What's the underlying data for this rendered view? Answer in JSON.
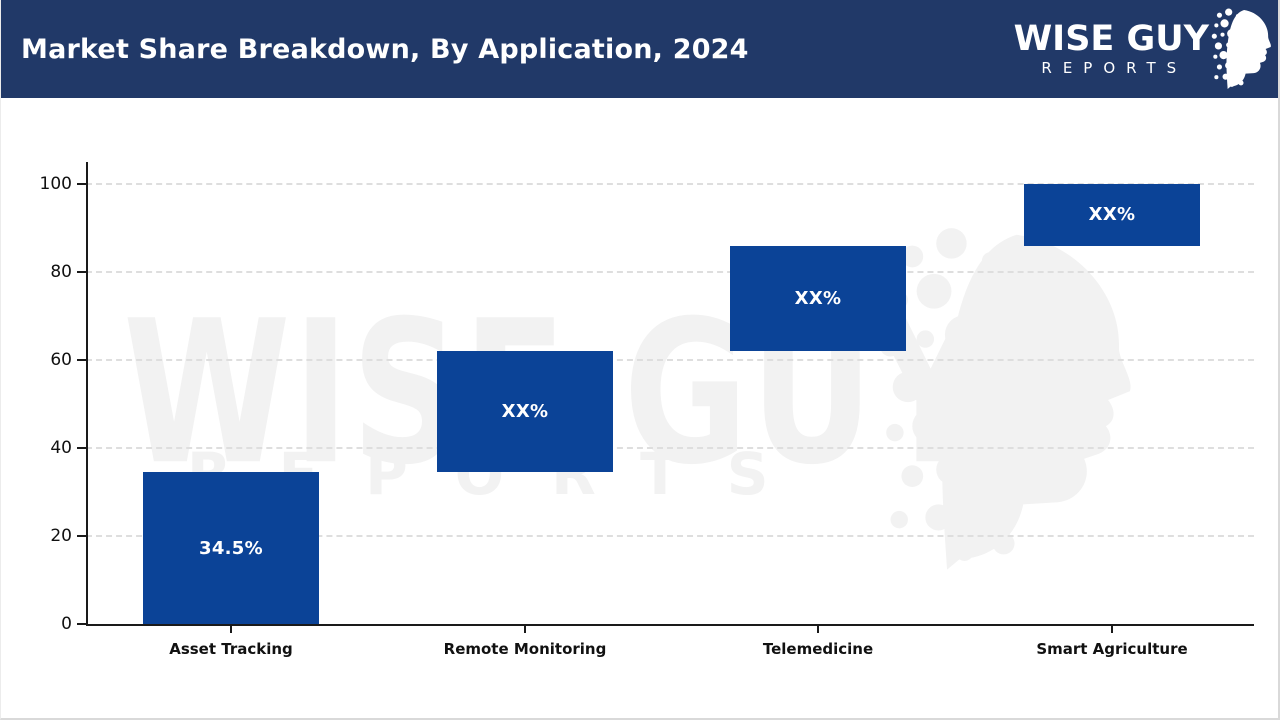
{
  "header": {
    "title": "Market Share Breakdown, By Application, 2024",
    "bg_color": "#213968",
    "logo": {
      "line1": "WISE GUY",
      "line2": "REPORTS"
    }
  },
  "watermark": {
    "line1": "WISE GUY",
    "line2": "REPORTS"
  },
  "chart_data": {
    "type": "bar",
    "subtype": "waterfall",
    "title": "Market Share Breakdown, By Application, 2024",
    "categories": [
      "Asset Tracking",
      "Remote Monitoring",
      "Telemedicine",
      "Smart Agriculture"
    ],
    "segments": [
      {
        "category": "Asset Tracking",
        "start": 0,
        "end": 34.5,
        "label": "34.5%"
      },
      {
        "category": "Remote Monitoring",
        "start": 34.5,
        "end": 62,
        "label": "XX%"
      },
      {
        "category": "Telemedicine",
        "start": 62,
        "end": 86,
        "label": "XX%"
      },
      {
        "category": "Smart Agriculture",
        "start": 86,
        "end": 100,
        "label": "XX%"
      }
    ],
    "yticks": [
      0,
      20,
      40,
      60,
      80,
      100
    ],
    "ylim": [
      0,
      105
    ],
    "xlabel": "",
    "ylabel": "",
    "grid": "horizontal-dashed",
    "legend": "none",
    "colors": {
      "bar": "#0b4397",
      "bar_label": "#ffffff",
      "axis": "#1a1a1a",
      "grid": "#dedede",
      "watermark": "#f2f2f2"
    }
  }
}
